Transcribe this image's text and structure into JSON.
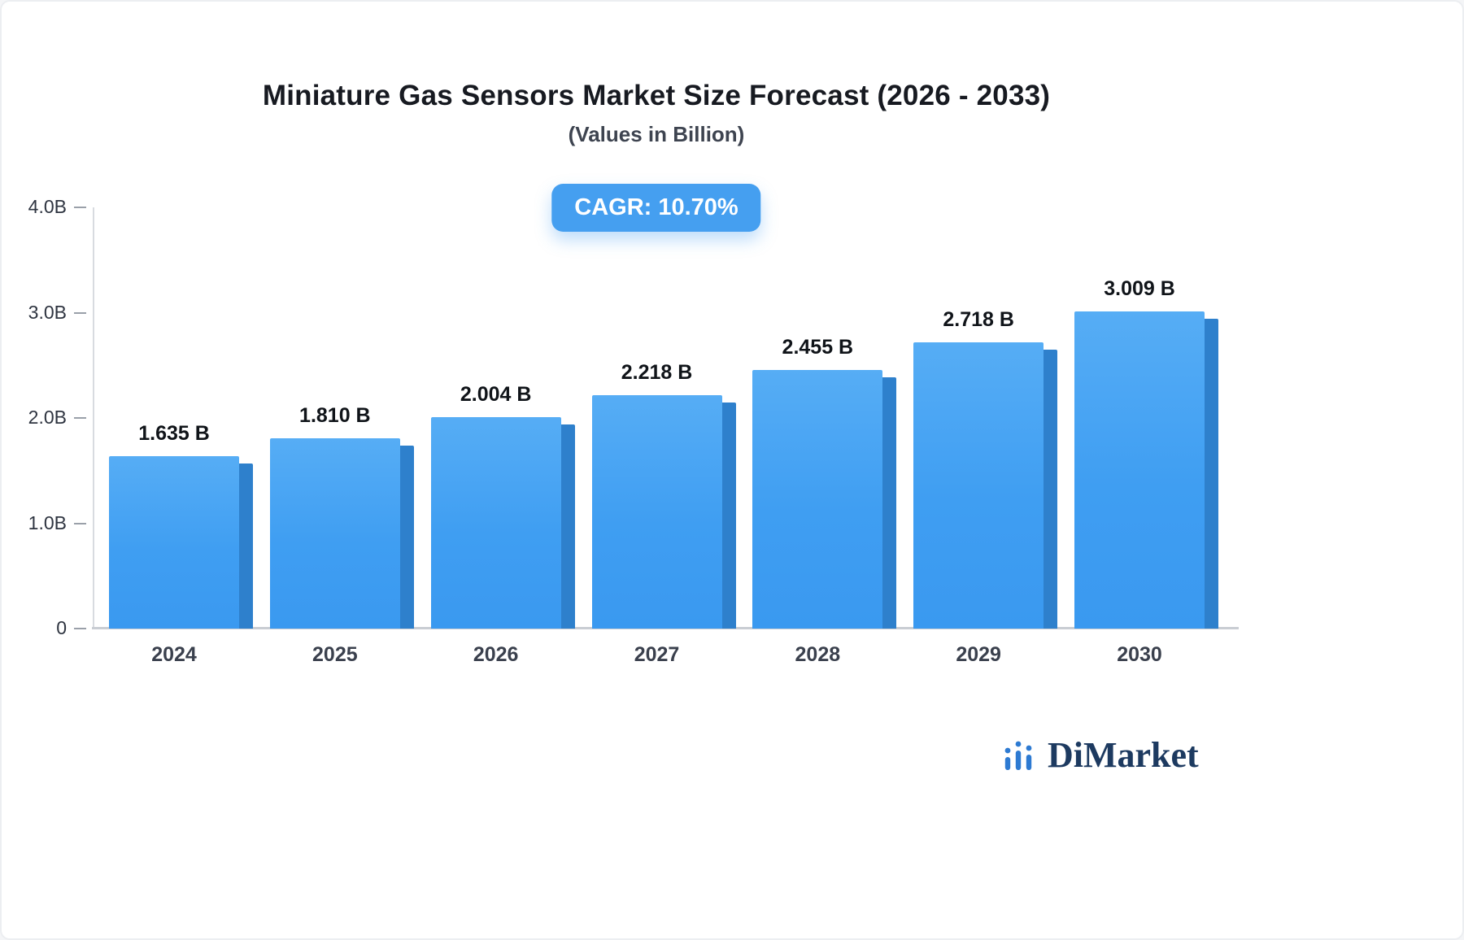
{
  "title": "Miniature Gas Sensors Market Size Forecast (2026 - 2033)",
  "subtitle": "(Values in Billion)",
  "badge_label": "CAGR: 10.70%",
  "logo": {
    "text": "DiMarket"
  },
  "colors": {
    "bar_main": "#42a1f2",
    "bar_side": "#2e80cc",
    "badge_bg": "#459ff0",
    "logo_blue": "#2d7ad2",
    "logo_text": "#1d3a60"
  },
  "chart_data": {
    "type": "bar",
    "title": "Miniature Gas Sensors Market Size Forecast (2026 - 2033)",
    "subtitle": "(Values in Billion)",
    "categories": [
      "2024",
      "2025",
      "2026",
      "2027",
      "2028",
      "2029",
      "2030"
    ],
    "values": [
      1.635,
      1.81,
      2.004,
      2.218,
      2.455,
      2.718,
      3.009
    ],
    "value_labels": [
      "1.635 B",
      "1.810 B",
      "2.004 B",
      "2.218 B",
      "2.455 B",
      "2.718 B",
      "3.009 B"
    ],
    "xlabel": "",
    "ylabel": "",
    "ylim": [
      0,
      4.0
    ],
    "ytick_labels": [
      "0",
      "1.0B",
      "2.0B",
      "3.0B",
      "4.0B"
    ],
    "grid": false,
    "legend": false
  }
}
